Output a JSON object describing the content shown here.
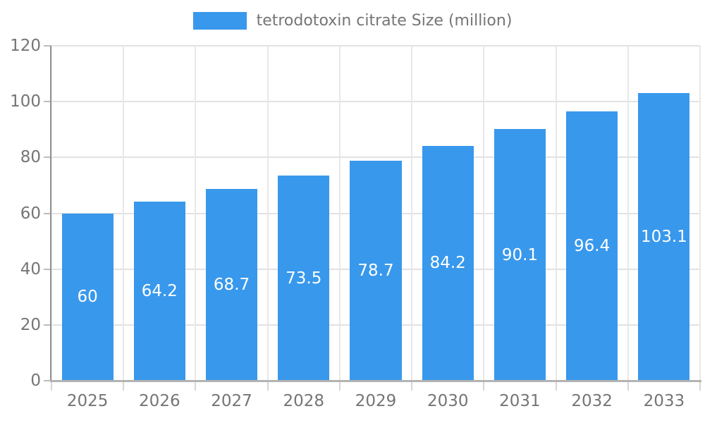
{
  "legend": {
    "label": "tetrodotoxin citrate Size (million)"
  },
  "colors": {
    "bar": "#3898ec",
    "grid_h": "#e2e2e2",
    "grid_v": "#e8e8e8",
    "axis_y": "#919191",
    "axis_x": "#b3b3b3",
    "tick": "#c9c9c9",
    "text": "#757575",
    "value_label": "#ffffff"
  },
  "chart_data": {
    "type": "bar",
    "title": "tetrodotoxin citrate Size (million)",
    "categories": [
      "2025",
      "2026",
      "2027",
      "2028",
      "2029",
      "2030",
      "2031",
      "2032",
      "2033"
    ],
    "values": [
      60,
      64.2,
      68.7,
      73.5,
      78.7,
      84.2,
      90.1,
      96.4,
      103.1
    ],
    "value_labels": [
      "60",
      "64.2",
      "68.7",
      "73.5",
      "78.7",
      "84.2",
      "90.1",
      "96.4",
      "103.1"
    ],
    "xlabel": "",
    "ylabel": "",
    "ylim": [
      0,
      120
    ],
    "ytick_step": 20,
    "ytick_labels": [
      "0",
      "20",
      "40",
      "60",
      "80",
      "100",
      "120"
    ],
    "grid": true,
    "legend_position": "top",
    "value_label_position": "inside-middle",
    "bar_width_fraction": 0.715
  }
}
